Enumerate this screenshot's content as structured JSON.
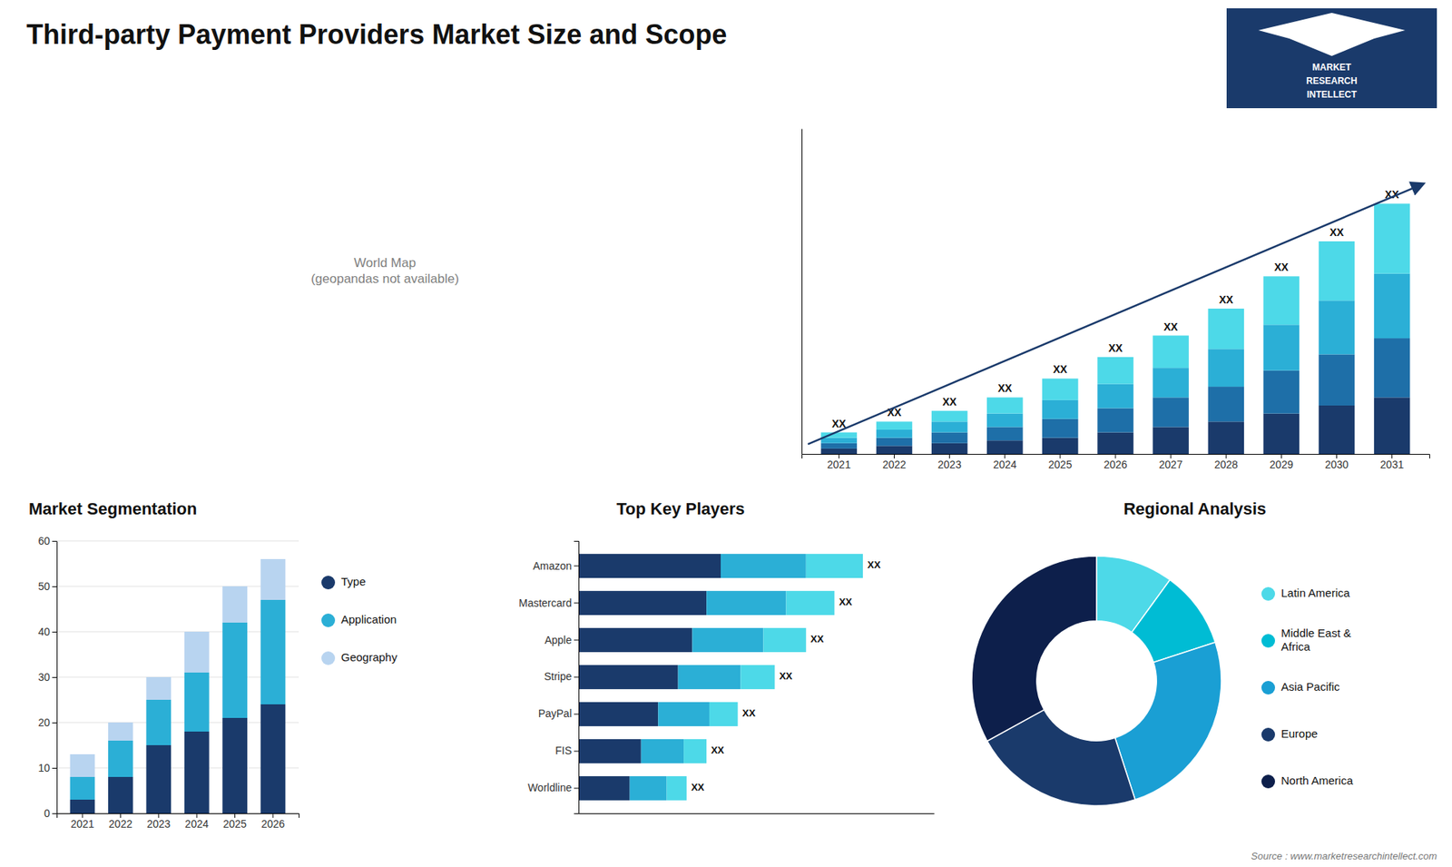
{
  "title": "Third-party Payment Providers Market Size and Scope",
  "annotations": [
    "MARKET",
    "RESEARCH",
    "INTELLECT",
    "World Map\n(geopandas not available)",
    "Source : www.marketresearchintellect.com"
  ],
  "chart_data": [
    {
      "type": "bar",
      "stacked": true,
      "categories": [
        "2021",
        "2022",
        "2023",
        "2024",
        "2025",
        "2026",
        "2027",
        "2028",
        "2029",
        "2030",
        "2031"
      ],
      "series": [
        {
          "color": "#1a3a6b",
          "values": [
            2,
            3,
            4,
            5,
            6,
            8,
            10,
            12,
            15,
            18,
            21
          ]
        },
        {
          "color": "#1e6fa8",
          "values": [
            2,
            3,
            4,
            5,
            7,
            9,
            11,
            13,
            16,
            19,
            22
          ]
        },
        {
          "color": "#2bafd6",
          "values": [
            2,
            3,
            4,
            5,
            7,
            9,
            11,
            14,
            17,
            20,
            24
          ]
        },
        {
          "color": "#4dd9e8",
          "values": [
            2,
            3,
            4,
            6,
            8,
            10,
            12,
            15,
            18,
            22,
            26
          ]
        }
      ],
      "ylim": [
        0,
        120.9
      ],
      "tick_labels": "x",
      "annotations": [
        "XX",
        "XX",
        "XX",
        "XX",
        "XX",
        "XX",
        "XX",
        "XX",
        "XX",
        "XX",
        "XX"
      ]
    },
    {
      "type": "bar",
      "stacked": true,
      "title": "Market Segmentation",
      "categories": [
        "2021",
        "2022",
        "2023",
        "2024",
        "2025",
        "2026"
      ],
      "series": [
        {
          "name": "Type",
          "color": "#1a3a6b",
          "values": [
            3,
            8,
            15,
            18,
            21,
            24
          ]
        },
        {
          "name": "Application",
          "color": "#2bafd6",
          "values": [
            5,
            8,
            10,
            13,
            21,
            23
          ]
        },
        {
          "name": "Geography",
          "color": "#b8d4f0",
          "values": [
            5,
            4,
            5,
            9,
            8,
            9
          ]
        }
      ],
      "ylim": [
        0,
        60
      ],
      "yticks": [
        0,
        10,
        20,
        30,
        40,
        50,
        60
      ],
      "grid": true,
      "legend": "right"
    },
    {
      "type": "bar",
      "orientation": "horizontal",
      "stacked": true,
      "title": "Top Key Players",
      "categories": [
        "Amazon",
        "Mastercard",
        "Apple",
        "Stripe",
        "PayPal",
        "FIS",
        "Worldline"
      ],
      "series": [
        {
          "color": "#1a3a6b",
          "values": [
            5.0,
            4.5,
            4.0,
            3.5,
            2.8,
            2.2,
            1.8
          ]
        },
        {
          "color": "#2bafd6",
          "values": [
            3.0,
            2.8,
            2.5,
            2.2,
            1.8,
            1.5,
            1.3
          ]
        },
        {
          "color": "#4dd9e8",
          "values": [
            2.0,
            1.7,
            1.5,
            1.2,
            1.0,
            0.8,
            0.7
          ]
        }
      ],
      "xlim": [
        0,
        12.5
      ],
      "tick_labels": "y",
      "annotations": [
        "XX",
        "XX",
        "XX",
        "XX",
        "XX",
        "XX",
        "XX"
      ]
    },
    {
      "type": "donut",
      "title": "Regional Analysis",
      "categories": [
        "Latin America",
        "Middle East &\nAfrica",
        "Asia Pacific",
        "Europe",
        "North America"
      ],
      "values": [
        10,
        10,
        25,
        22,
        33
      ],
      "colors": [
        "#4dd9e8",
        "#00bcd4",
        "#1a9fd4",
        "#1a3a6b",
        "#0d1f4b"
      ],
      "legend": "right"
    }
  ]
}
